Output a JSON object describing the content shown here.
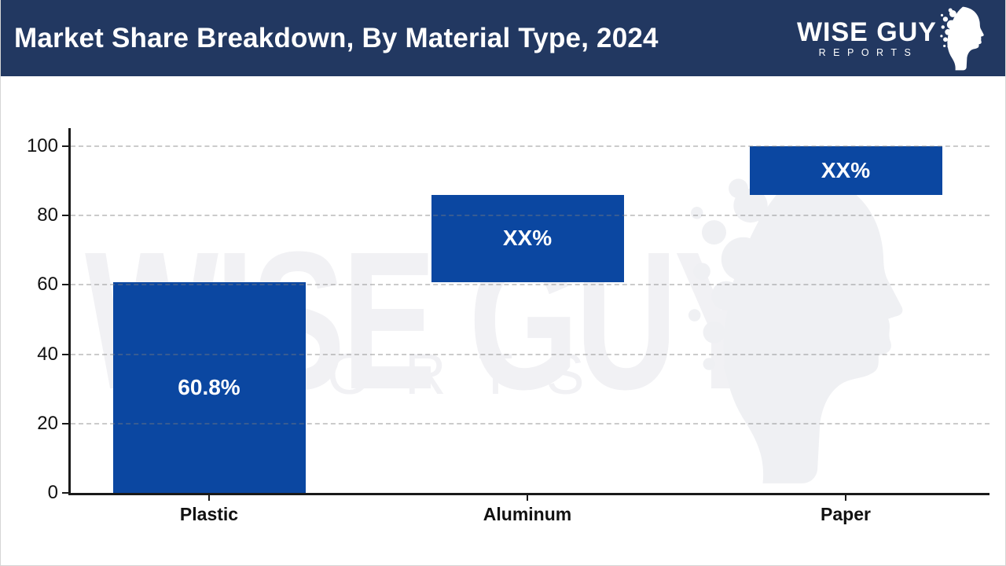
{
  "header": {
    "title": "Market Share Breakdown, By Material Type, 2024",
    "brand": {
      "name_top": "WISE GUY",
      "name_bottom": "REPORTS"
    }
  },
  "watermark": {
    "line1": "WISE GUY",
    "line2": "REPORTS"
  },
  "chart_data": {
    "type": "bar",
    "subtype": "waterfall-floating-bars",
    "title": "Market Share Breakdown, By Material Type, 2024",
    "categories": [
      "Plastic",
      "Aluminum",
      "Paper"
    ],
    "bars": [
      {
        "category": "Plastic",
        "start": 0,
        "end": 60.8,
        "label": "60.8%"
      },
      {
        "category": "Aluminum",
        "start": 60.8,
        "end": 86,
        "label": "XX%"
      },
      {
        "category": "Paper",
        "start": 86,
        "end": 100,
        "label": "XX%"
      }
    ],
    "yticks": [
      0,
      20,
      40,
      60,
      80,
      100
    ],
    "ylim": [
      0,
      105
    ],
    "xlabel": "",
    "ylabel": "",
    "legend": "none",
    "grid": "horizontal-dashed-over-bars",
    "bar_color": "#0b47a1",
    "bar_label_color": "#ffffff",
    "axis_color": "#1a1a1a",
    "header_bg_color": "#223861",
    "watermark_color": "#f1f1f4"
  }
}
